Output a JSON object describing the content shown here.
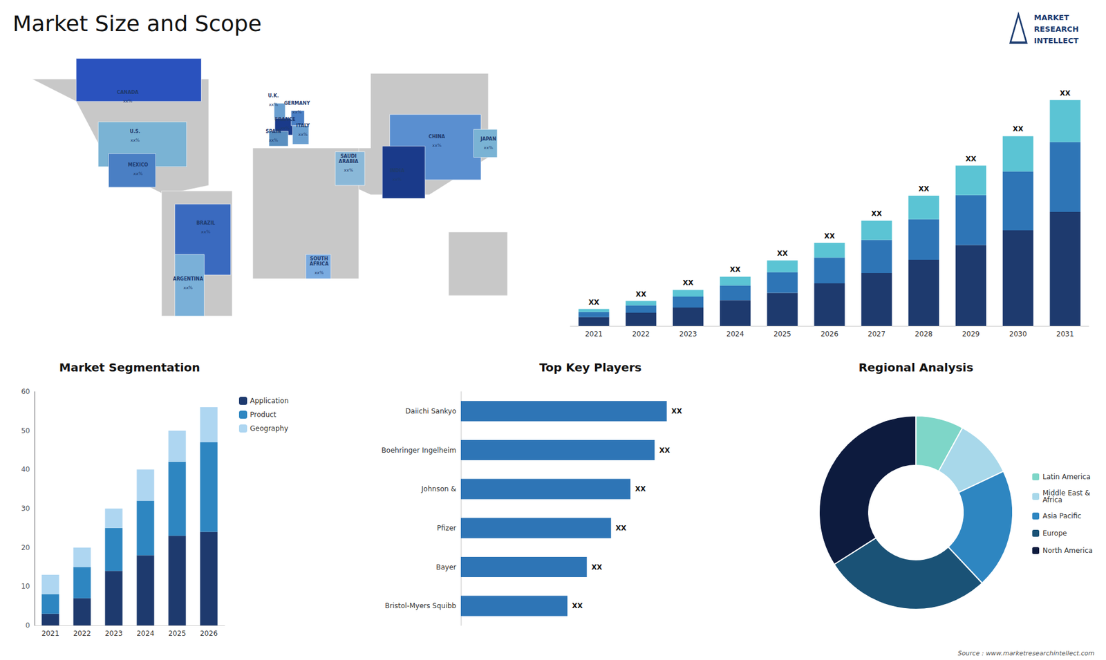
{
  "title": "Market Size and Scope",
  "logo": [
    "MARKET",
    "RESEARCH",
    "INTELLECT"
  ],
  "source": "Source : www.marketresearchintellect.com",
  "chart_data": [
    {
      "type": "map",
      "xlim": [
        -180,
        180
      ],
      "ylim": [
        -60,
        85
      ],
      "tick_labels": false,
      "grid": false,
      "land": {
        "color": "#c8c8c8",
        "polygons": [
          [
            [
              -170,
              72
            ],
            [
              -50,
              72
            ],
            [
              -50,
              15
            ],
            [
              -80,
              10
            ],
            [
              -105,
              20
            ],
            [
              -120,
              30
            ],
            [
              -140,
              60
            ],
            [
              -170,
              72
            ]
          ],
          [
            [
              -10,
              35
            ],
            [
              60,
              35
            ],
            [
              60,
              75
            ],
            [
              140,
              75
            ],
            [
              140,
              30
            ],
            [
              100,
              10
            ],
            [
              60,
              10
            ],
            [
              -10,
              35
            ]
          ],
          [
            [
              -20,
              35
            ],
            [
              52,
              35
            ],
            [
              52,
              -35
            ],
            [
              -20,
              -35
            ],
            [
              -20,
              35
            ]
          ],
          [
            [
              -82,
              12
            ],
            [
              -34,
              12
            ],
            [
              -34,
              -55
            ],
            [
              -82,
              -55
            ],
            [
              -82,
              12
            ]
          ],
          [
            [
              113,
              -10
            ],
            [
              153,
              -10
            ],
            [
              153,
              -44
            ],
            [
              113,
              -44
            ],
            [
              113,
              -10
            ]
          ]
        ]
      },
      "regions": [
        {
          "name": "CANADA",
          "label": "xx%",
          "color": "#2a52be",
          "x": -105,
          "y": 62,
          "polygon": [
            [
              -140,
              60
            ],
            [
              -55,
              60
            ],
            [
              -55,
              83
            ],
            [
              -140,
              83
            ],
            [
              -140,
              60
            ]
          ]
        },
        {
          "name": "U.S.",
          "label": "xx%",
          "color": "#7ab3d4",
          "x": -100,
          "y": 41,
          "polygon": [
            [
              -125,
              25
            ],
            [
              -65,
              25
            ],
            [
              -65,
              49
            ],
            [
              -125,
              49
            ],
            [
              -125,
              25
            ]
          ]
        },
        {
          "name": "MEXICO",
          "label": "xx%",
          "color": "#4a7fc4",
          "x": -98,
          "y": 23,
          "polygon": [
            [
              -118,
              14
            ],
            [
              -86,
              14
            ],
            [
              -86,
              32
            ],
            [
              -118,
              32
            ],
            [
              -118,
              14
            ]
          ]
        },
        {
          "name": "BRAZIL",
          "label": "xx%",
          "color": "#3a6abf",
          "x": -52,
          "y": -8,
          "polygon": [
            [
              -73,
              -33
            ],
            [
              -35,
              -33
            ],
            [
              -35,
              5
            ],
            [
              -73,
              5
            ],
            [
              -73,
              -33
            ]
          ]
        },
        {
          "name": "ARGENTINA",
          "label": "xx%",
          "color": "#7ab0d8",
          "x": -64,
          "y": -38,
          "polygon": [
            [
              -73,
              -55
            ],
            [
              -53,
              -55
            ],
            [
              -53,
              -22
            ],
            [
              -73,
              -22
            ],
            [
              -73,
              -55
            ]
          ]
        },
        {
          "name": "U.K.",
          "label": "xx%",
          "color": "#6a9fd0",
          "x": -6,
          "y": 60,
          "polygon": [
            [
              -5.5,
              50
            ],
            [
              2,
              50
            ],
            [
              2,
              59
            ],
            [
              -5.5,
              59
            ],
            [
              -5.5,
              50
            ]
          ]
        },
        {
          "name": "FRANCE",
          "label": "xx%",
          "color": "#1a3a8a",
          "x": 2,
          "y": 47.5,
          "polygon": [
            [
              -5,
              42
            ],
            [
              8,
              42
            ],
            [
              8,
              51
            ],
            [
              -5,
              51
            ],
            [
              -5,
              42
            ]
          ]
        },
        {
          "name": "SPAIN",
          "label": "xx%",
          "color": "#5a8fc0",
          "x": -6,
          "y": 41,
          "polygon": [
            [
              -9,
              36
            ],
            [
              4,
              36
            ],
            [
              4,
              44
            ],
            [
              -9,
              44
            ],
            [
              -9,
              36
            ]
          ]
        },
        {
          "name": "GERMANY",
          "label": "xx%",
          "color": "#4a7fc4",
          "x": 10,
          "y": 56,
          "polygon": [
            [
              6,
              47
            ],
            [
              15,
              47
            ],
            [
              15,
              55
            ],
            [
              6,
              55
            ],
            [
              6,
              47
            ]
          ]
        },
        {
          "name": "ITALY",
          "label": "xx%",
          "color": "#6a9fd0",
          "x": 14,
          "y": 44,
          "polygon": [
            [
              7,
              37
            ],
            [
              18,
              37
            ],
            [
              18,
              47
            ],
            [
              7,
              47
            ],
            [
              7,
              37
            ]
          ]
        },
        {
          "name": "SAUDI\nARABIA",
          "label": "xx%",
          "color": "#8ab8d8",
          "x": 45,
          "y": 25,
          "polygon": [
            [
              36,
              15
            ],
            [
              56,
              15
            ],
            [
              56,
              33
            ],
            [
              36,
              33
            ],
            [
              36,
              15
            ]
          ]
        },
        {
          "name": "SOUTH\nAFRICA",
          "label": "xx%",
          "color": "#7aabe0",
          "x": 25,
          "y": -30,
          "polygon": [
            [
              16,
              -35
            ],
            [
              33,
              -35
            ],
            [
              33,
              -22
            ],
            [
              16,
              -22
            ],
            [
              16,
              -35
            ]
          ]
        },
        {
          "name": "CHINA",
          "label": "xx%",
          "color": "#5a8fd0",
          "x": 105,
          "y": 38,
          "polygon": [
            [
              73,
              18
            ],
            [
              135,
              18
            ],
            [
              135,
              53
            ],
            [
              73,
              53
            ],
            [
              73,
              18
            ]
          ]
        },
        {
          "name": "INDIA",
          "label": "xx%",
          "color": "#1a3a8a",
          "x": 78,
          "y": 20,
          "polygon": [
            [
              68,
              8
            ],
            [
              97,
              8
            ],
            [
              97,
              36
            ],
            [
              68,
              36
            ],
            [
              68,
              8
            ]
          ]
        },
        {
          "name": "JAPAN",
          "label": "xx%",
          "color": "#7ab3d4",
          "x": 140,
          "y": 37,
          "polygon": [
            [
              130,
              30
            ],
            [
              146,
              30
            ],
            [
              146,
              45
            ],
            [
              130,
              45
            ],
            [
              130,
              30
            ]
          ]
        }
      ]
    },
    {
      "type": "bar",
      "stacked": true,
      "grid": false,
      "tick_labels": "x",
      "categories": [
        "2021",
        "2022",
        "2023",
        "2024",
        "2025",
        "2026",
        "2027",
        "2028",
        "2029",
        "2030",
        "2031"
      ],
      "series": [
        {
          "color": "#1e3a6e",
          "values": [
            1.2,
            1.8,
            2.5,
            3.5,
            4.5,
            5.8,
            7.2,
            9.0,
            11.0,
            13.0,
            15.5
          ]
        },
        {
          "color": "#2e75b6",
          "values": [
            0.7,
            1.0,
            1.5,
            2.0,
            2.8,
            3.5,
            4.5,
            5.5,
            6.8,
            8.0,
            9.5
          ]
        },
        {
          "color": "#5bc4d4",
          "values": [
            0.4,
            0.6,
            0.9,
            1.2,
            1.6,
            2.0,
            2.6,
            3.2,
            4.0,
            4.8,
            5.7
          ]
        }
      ],
      "annotations": [
        "XX",
        "XX",
        "XX",
        "XX",
        "XX",
        "XX",
        "XX",
        "XX",
        "XX",
        "XX",
        "XX"
      ],
      "ylim": [
        0,
        35.7
      ]
    },
    {
      "type": "bar",
      "title": "Market Segmentation",
      "stacked": true,
      "grid": false,
      "legend": "upper right",
      "categories": [
        "2021",
        "2022",
        "2023",
        "2024",
        "2025",
        "2026"
      ],
      "series": [
        {
          "name": "Application",
          "color": "#1e3a6e",
          "values": [
            3,
            7,
            14,
            18,
            23,
            24
          ]
        },
        {
          "name": "Product",
          "color": "#2e86c1",
          "values": [
            5,
            8,
            11,
            14,
            19,
            23
          ]
        },
        {
          "name": "Geography",
          "color": "#aed6f1",
          "values": [
            5,
            5,
            5,
            8,
            8,
            9
          ]
        }
      ],
      "ylim": [
        0,
        60
      ],
      "yticks": [
        0,
        10,
        20,
        30,
        40,
        50,
        60
      ]
    },
    {
      "type": "bar",
      "title": "Top Key Players",
      "orientation": "horizontal",
      "grid": false,
      "tick_labels": "y",
      "categories": [
        "Daiichi Sankyo",
        "Boehringer Ingelheim",
        "Johnson &",
        "Pfizer",
        "Bayer",
        "Bristol-Myers Squibb"
      ],
      "values": [
        85,
        80,
        70,
        62,
        52,
        44
      ],
      "color": "#2e75b6",
      "data_labels": true,
      "value_labels": [
        "XX",
        "XX",
        "XX",
        "XX",
        "XX",
        "XX"
      ],
      "xlim": [
        0,
        107
      ]
    },
    {
      "type": "donut",
      "title": "Regional Analysis",
      "legend": "right",
      "categories": [
        "Latin America",
        "Middle East &\nAfrica",
        "Asia Pacific",
        "Europe",
        "North America"
      ],
      "values": [
        8,
        10,
        20,
        28,
        34
      ],
      "colors": [
        "#7ed6c8",
        "#a8d8ea",
        "#2e86c1",
        "#1a5276",
        "#0d1b3e"
      ]
    }
  ]
}
